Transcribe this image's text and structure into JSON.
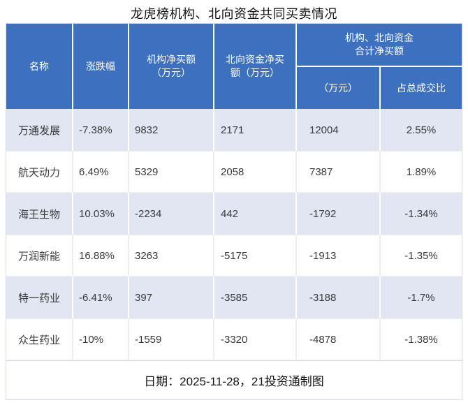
{
  "title": "龙虎榜机构、北向资金共同买卖情况",
  "colors": {
    "header_bg": "#3e70c0",
    "header_text": "#ffffff",
    "row_alt_bg": "#e2e5f2",
    "row_bg": "#ffffff",
    "body_text": "#3a3a3a"
  },
  "table": {
    "headers": {
      "name": "名称",
      "change": "涨跌幅",
      "inst_line1": "机构净买额",
      "inst_line2": "（万元）",
      "north_line1": "北向资金净买",
      "north_line2": "额（万元）",
      "group_line1": "机构、北向资金",
      "group_line2": "合计净买额",
      "combined_amount": "（万元）",
      "combined_ratio": "占总成交比"
    },
    "rows": [
      {
        "name": "万通发展",
        "change": "-7.38%",
        "inst": "9832",
        "north": "2171",
        "total": "12004",
        "ratio": "2.55%"
      },
      {
        "name": "航天动力",
        "change": "6.49%",
        "inst": "5329",
        "north": "2058",
        "total": "7387",
        "ratio": "1.89%"
      },
      {
        "name": "海王生物",
        "change": "10.03%",
        "inst": "-2234",
        "north": "442",
        "total": "-1792",
        "ratio": "-1.34%"
      },
      {
        "name": "万润新能",
        "change": "16.88%",
        "inst": "3263",
        "north": "-5175",
        "total": "-1913",
        "ratio": "-1.35%"
      },
      {
        "name": "特一药业",
        "change": "-6.41%",
        "inst": "397",
        "north": "-3585",
        "total": "-3188",
        "ratio": "-1.7%"
      },
      {
        "name": "众生药业",
        "change": "-10%",
        "inst": "-1559",
        "north": "-3320",
        "total": "-4878",
        "ratio": "-1.38%"
      }
    ]
  },
  "footer": {
    "note": "日期：2025-11-28，21投资通制图"
  },
  "chart_data": {
    "type": "table",
    "title": "龙虎榜机构、北向资金共同买卖情况",
    "columns": [
      "名称",
      "涨跌幅",
      "机构净买额（万元）",
      "北向资金净买额（万元）",
      "机构、北向资金合计净买额（万元）",
      "机构、北向资金合计净买额占总成交比"
    ],
    "rows": [
      [
        "万通发展",
        "-7.38%",
        9832,
        2171,
        12004,
        "2.55%"
      ],
      [
        "航天动力",
        "6.49%",
        5329,
        2058,
        7387,
        "1.89%"
      ],
      [
        "海王生物",
        "10.03%",
        -2234,
        442,
        -1792,
        "-1.34%"
      ],
      [
        "万润新能",
        "16.88%",
        3263,
        -5175,
        -1913,
        "-1.35%"
      ],
      [
        "特一药业",
        "-6.41%",
        397,
        -3585,
        -3188,
        "-1.7%"
      ],
      [
        "众生药业",
        "-10%",
        -1559,
        -3320,
        -4878,
        "-1.38%"
      ]
    ],
    "note": "日期：2025-11-28，21投资通制图",
    "layout": {
      "header_rows": 2,
      "merged_header_cols": [
        5,
        6
      ],
      "alternating_row_shading": true
    }
  }
}
